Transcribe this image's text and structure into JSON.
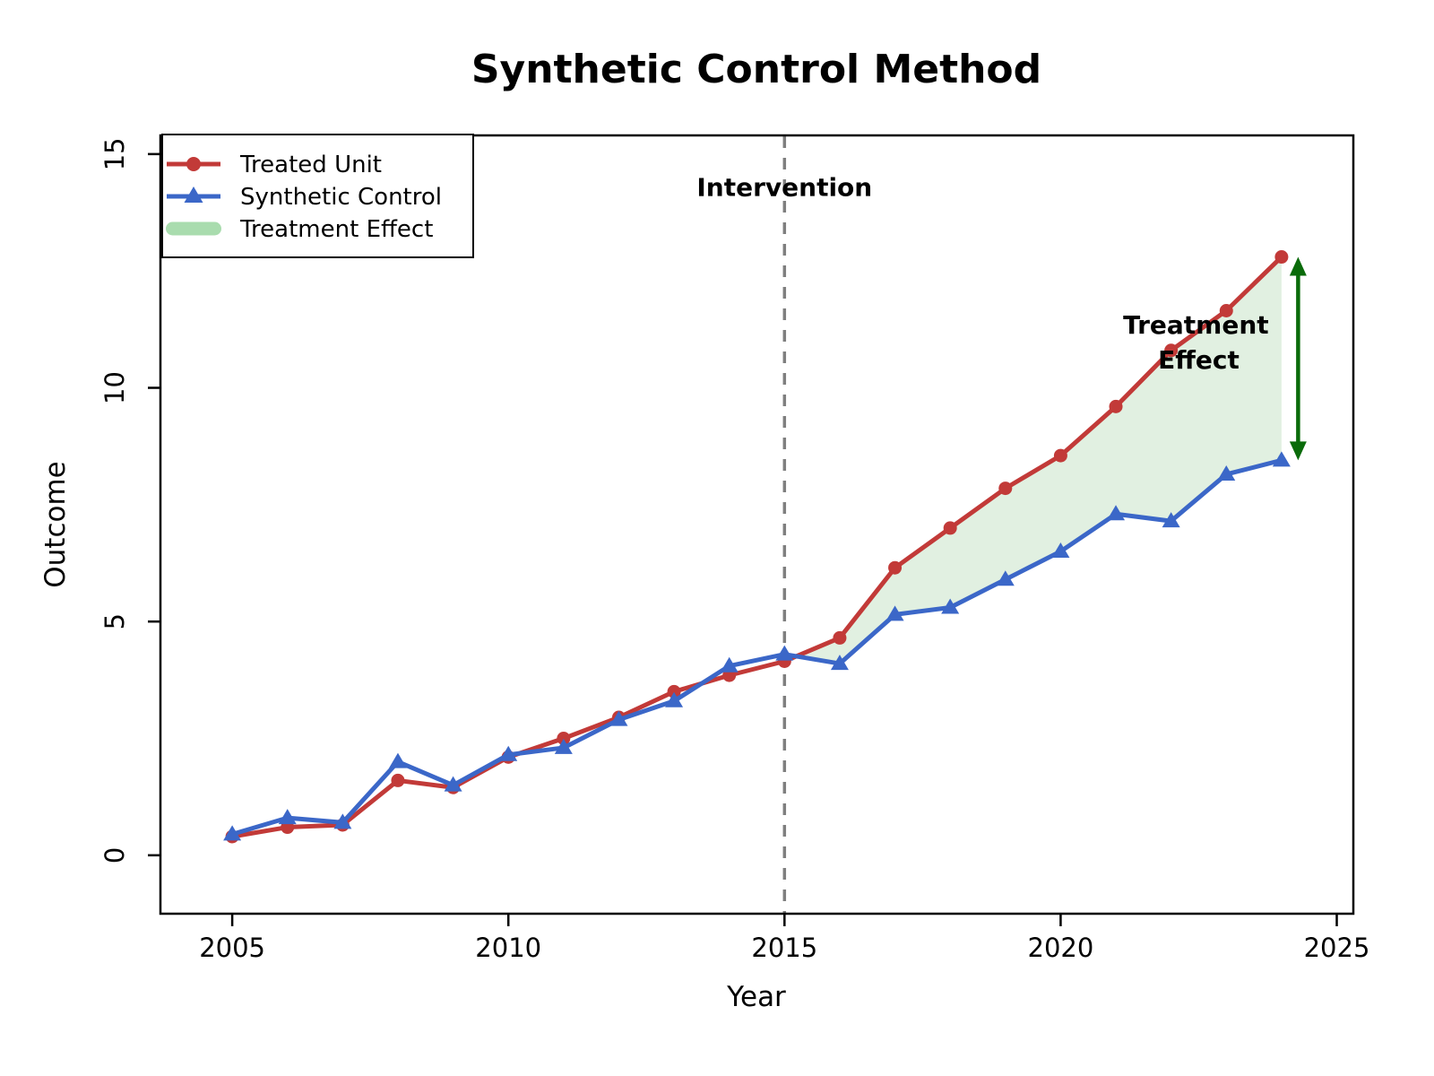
{
  "figure": {
    "title": "Synthetic Control Method",
    "xlabel": "Year",
    "ylabel": "Outcome"
  },
  "chart_data": {
    "type": "line",
    "title": "Synthetic Control Method",
    "xlabel": "Year",
    "ylabel": "Outcome",
    "x": [
      2005,
      2006,
      2007,
      2008,
      2009,
      2010,
      2011,
      2012,
      2013,
      2014,
      2015,
      2016,
      2017,
      2018,
      2019,
      2020,
      2021,
      2022,
      2023,
      2024
    ],
    "series": [
      {
        "name": "Treated Unit",
        "color": "#c23a38",
        "marker": "circle",
        "values": [
          0.4,
          0.6,
          0.65,
          1.6,
          1.45,
          2.1,
          2.5,
          2.95,
          3.5,
          3.85,
          4.15,
          4.65,
          6.15,
          7.0,
          7.85,
          8.55,
          9.6,
          10.8,
          11.65,
          12.8
        ]
      },
      {
        "name": "Synthetic Control",
        "color": "#3b67c8",
        "marker": "triangle",
        "values": [
          0.45,
          0.8,
          0.7,
          2.0,
          1.5,
          2.15,
          2.3,
          2.9,
          3.3,
          4.05,
          4.3,
          4.1,
          5.15,
          5.3,
          5.9,
          6.5,
          7.3,
          7.15,
          8.15,
          8.45
        ]
      }
    ],
    "fill_between": {
      "name": "Treatment Effect",
      "from_x": 2015,
      "to_x": 2024,
      "color": "#90c890",
      "opacity": 0.27,
      "legend_swatch_color": "#a9dcae"
    },
    "axes": {
      "xlim": [
        2003.7,
        2025.3
      ],
      "ylim": [
        -1.25,
        15.4
      ],
      "x_ticks": [
        2005,
        2010,
        2015,
        2020,
        2025
      ],
      "y_ticks": [
        0,
        5,
        10,
        15
      ],
      "grid": false
    },
    "legend": {
      "position": "upper-left",
      "items": [
        "Treated Unit",
        "Synthetic Control",
        "Treatment Effect"
      ]
    },
    "annotations": {
      "intervention": {
        "label": "Intervention",
        "x": 2015,
        "label_pos": [
          2015,
          14.3
        ],
        "line_color": "#7f7f7f",
        "text_color": "#5e5e5e"
      },
      "effect_label": {
        "lines": [
          "Treatment",
          "Effect"
        ],
        "pos1": [
          2022.45,
          11.35
        ],
        "pos2": [
          2022.5,
          10.6
        ],
        "color": "#0a6b0a"
      },
      "effect_arrow": {
        "x": 2024.3,
        "top": 12.8,
        "bottom": 8.45,
        "color": "#0a6b0a"
      }
    }
  }
}
